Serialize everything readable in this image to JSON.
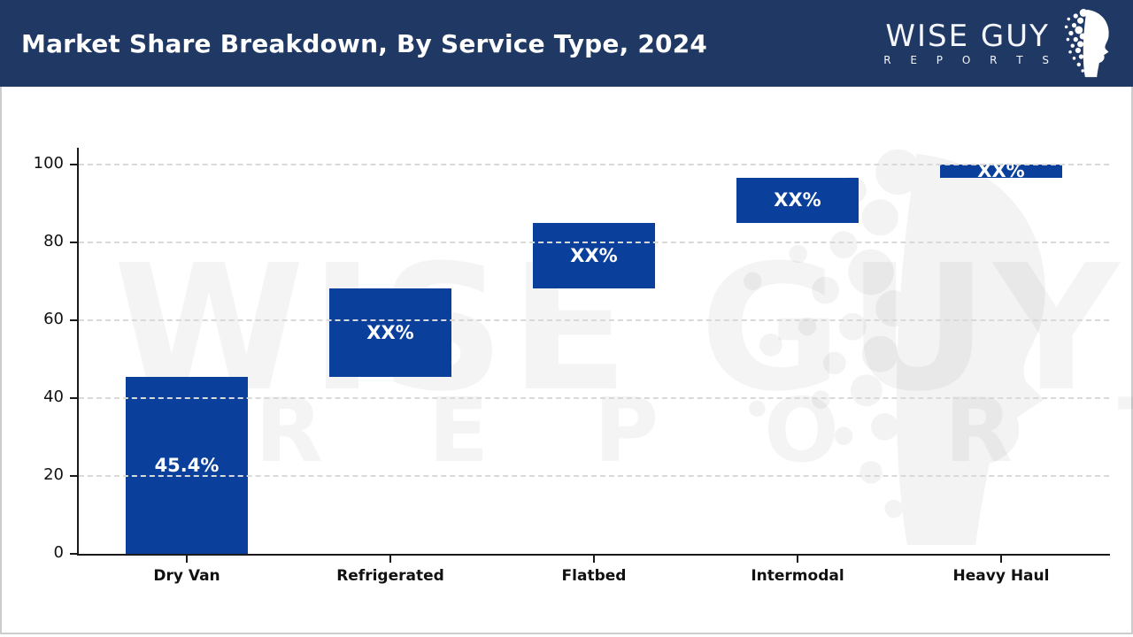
{
  "header": {
    "title": "Market Share Breakdown, By Service Type, 2024",
    "logo": {
      "line1": "WISE GUY",
      "line2": "R E P O R T S"
    }
  },
  "watermark": {
    "line1": "WISE GUY",
    "line2": "R E P O R T S"
  },
  "colors": {
    "header_bg": "#1f3864",
    "bar": "#0a3f9c",
    "gridline": "#d9d9d9",
    "axis": "#1a1a1a"
  },
  "chart_data": {
    "type": "bar",
    "variant": "waterfall-stacked-share",
    "title": "Market Share Breakdown, By Service Type, 2024",
    "categories": [
      "Dry Van",
      "Refrigerated",
      "Flatbed",
      "Intermodal",
      "Heavy Haul"
    ],
    "bars": [
      {
        "category": "Dry Van",
        "start": 0,
        "end": 45.4,
        "label": "45.4%"
      },
      {
        "category": "Refrigerated",
        "start": 45.4,
        "end": 68,
        "label": "XX%"
      },
      {
        "category": "Flatbed",
        "start": 68,
        "end": 85,
        "label": "XX%"
      },
      {
        "category": "Intermodal",
        "start": 85,
        "end": 96.4,
        "label": "XX%"
      },
      {
        "category": "Heavy Haul",
        "start": 96.4,
        "end": 100,
        "label": "XX%"
      }
    ],
    "yticks": [
      0,
      20,
      40,
      60,
      80,
      100
    ],
    "ylim": [
      0,
      104
    ],
    "xlabel": "",
    "ylabel": "",
    "grid": "horizontal dashed, drawn above bars",
    "legend": "none",
    "bar_color": "#0a3f9c"
  }
}
